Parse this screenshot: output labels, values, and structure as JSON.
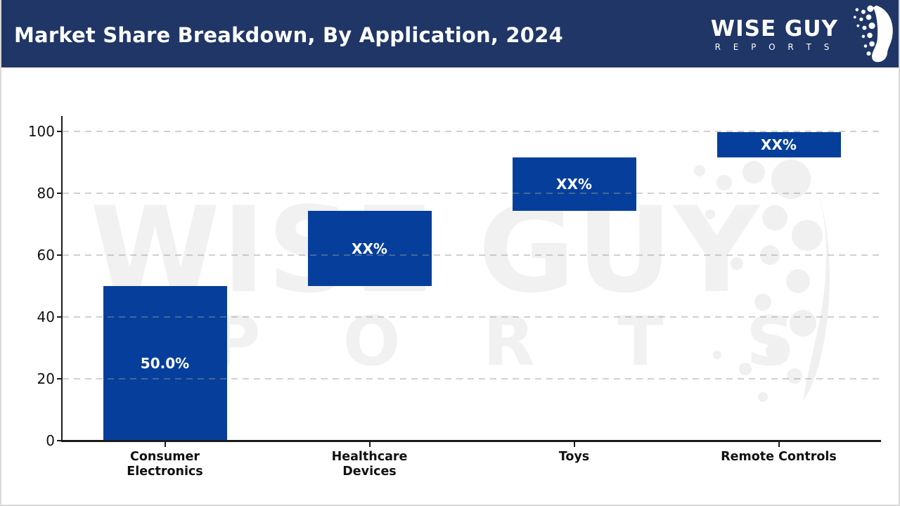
{
  "header": {
    "title": "Market Share Breakdown, By Application, 2024",
    "logo": {
      "line1": "WISE GUY",
      "line2": "R E P O R T S"
    }
  },
  "watermark": {
    "line1": "WISE GUY",
    "line2": "P O R T S"
  },
  "chart_data": {
    "type": "bar",
    "subtype": "floating-waterfall-segments",
    "title": "Market Share Breakdown, By Application, 2024",
    "categories": [
      "Consumer Electronics",
      "Healthcare Devices",
      "Toys",
      "Remote Controls"
    ],
    "segments": [
      {
        "category": "Consumer Electronics",
        "start": 0,
        "end": 50,
        "label": "50.0%"
      },
      {
        "category": "Healthcare Devices",
        "start": 50,
        "end": 74.3,
        "label": "XX%"
      },
      {
        "category": "Toys",
        "start": 74.3,
        "end": 91.7,
        "label": "XX%"
      },
      {
        "category": "Remote Controls",
        "start": 91.7,
        "end": 99.8,
        "label": "XX%"
      }
    ],
    "ylim": [
      0,
      100
    ],
    "yticks": [
      0,
      20,
      40,
      60,
      80,
      100
    ],
    "grid": "horizontal-dashed",
    "legend": "none",
    "colors": {
      "bar": "#063f9b",
      "bar_label": "#ffffff",
      "header_bg": "#1f3666",
      "axis": "#1a1a1a",
      "grid": "rgba(150,150,150,0.45)",
      "watermark": "#f1f1f1"
    }
  }
}
